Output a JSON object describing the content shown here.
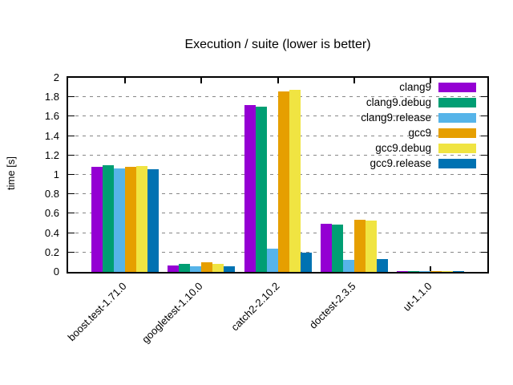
{
  "chart_data": {
    "type": "bar",
    "title": "Execution / suite (lower is better)",
    "ylabel": "time [s]",
    "ylim": [
      0,
      2
    ],
    "ytick_step": 0.2,
    "yticks": [
      "0",
      "0.2",
      "0.4",
      "0.6",
      "0.8",
      "1",
      "1.2",
      "1.4",
      "1.6",
      "1.8",
      "2"
    ],
    "grid": "horizontal-dashed",
    "grid_color": "#878787",
    "legend_position": "top-right-inside",
    "categories": [
      "boost.test-1.71.0",
      "googletest-1.10.0",
      "catch2-2.10.2",
      "doctest-2.3.5",
      "ut-1.1.0"
    ],
    "series": [
      {
        "name": "clang9",
        "color": "#9400d3",
        "values": [
          1.08,
          0.07,
          1.72,
          0.5,
          0.01
        ]
      },
      {
        "name": "clang9.debug",
        "color": "#009e73",
        "values": [
          1.1,
          0.08,
          1.7,
          0.49,
          0.01
        ]
      },
      {
        "name": "clang9.release",
        "color": "#56b4e9",
        "values": [
          1.07,
          0.06,
          0.24,
          0.12,
          0.01
        ]
      },
      {
        "name": "gcc9",
        "color": "#e69f00",
        "values": [
          1.08,
          0.1,
          1.86,
          0.54,
          0.01
        ]
      },
      {
        "name": "gcc9.debug",
        "color": "#f0e442",
        "values": [
          1.09,
          0.08,
          1.88,
          0.53,
          0.01
        ]
      },
      {
        "name": "gcc9.release",
        "color": "#0072b2",
        "values": [
          1.06,
          0.06,
          0.2,
          0.13,
          0.01
        ]
      }
    ]
  }
}
